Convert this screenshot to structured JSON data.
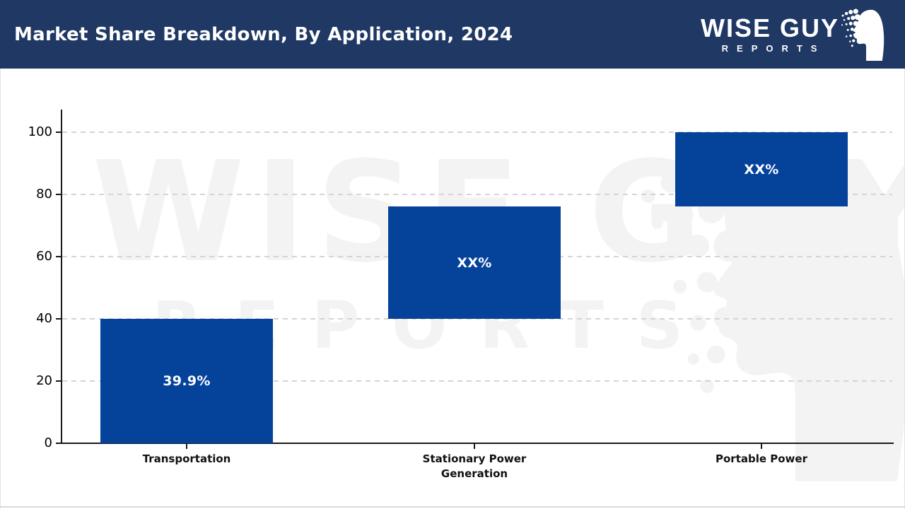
{
  "header": {
    "title": "Market Share Breakdown, By Application, 2024",
    "bg_color": "#1F3864",
    "logo": {
      "line1": "WISE GUY",
      "line2": "REPORTS"
    }
  },
  "watermark": {
    "line1": "WISE GUY",
    "line2": "REPORTS"
  },
  "chart_data": {
    "type": "bar",
    "subtype": "floating-waterfall",
    "title": "Market Share Breakdown, By Application, 2024",
    "categories": [
      "Transportation",
      "Stationary Power\nGeneration",
      "Portable Power"
    ],
    "bars": [
      {
        "category": "Transportation",
        "start": 0,
        "end": 39.9,
        "label": "39.9%"
      },
      {
        "category": "Stationary Power Generation",
        "start": 39.9,
        "end": 76.1,
        "label": "XX%"
      },
      {
        "category": "Portable Power",
        "start": 76.1,
        "end": 100,
        "label": "XX%"
      }
    ],
    "xlabel": "",
    "ylabel": "",
    "ylim": [
      0,
      100
    ],
    "yticks": [
      0,
      20,
      40,
      60,
      80,
      100
    ],
    "grid": "horizontal-dashed",
    "legend": "none",
    "bar_color": "#05439B",
    "bar_label_color": "#FFFFFF",
    "grid_color": "#D4D4D4",
    "axis_color": "#1A1A1A",
    "watermark_color": "#F3F3F4"
  }
}
